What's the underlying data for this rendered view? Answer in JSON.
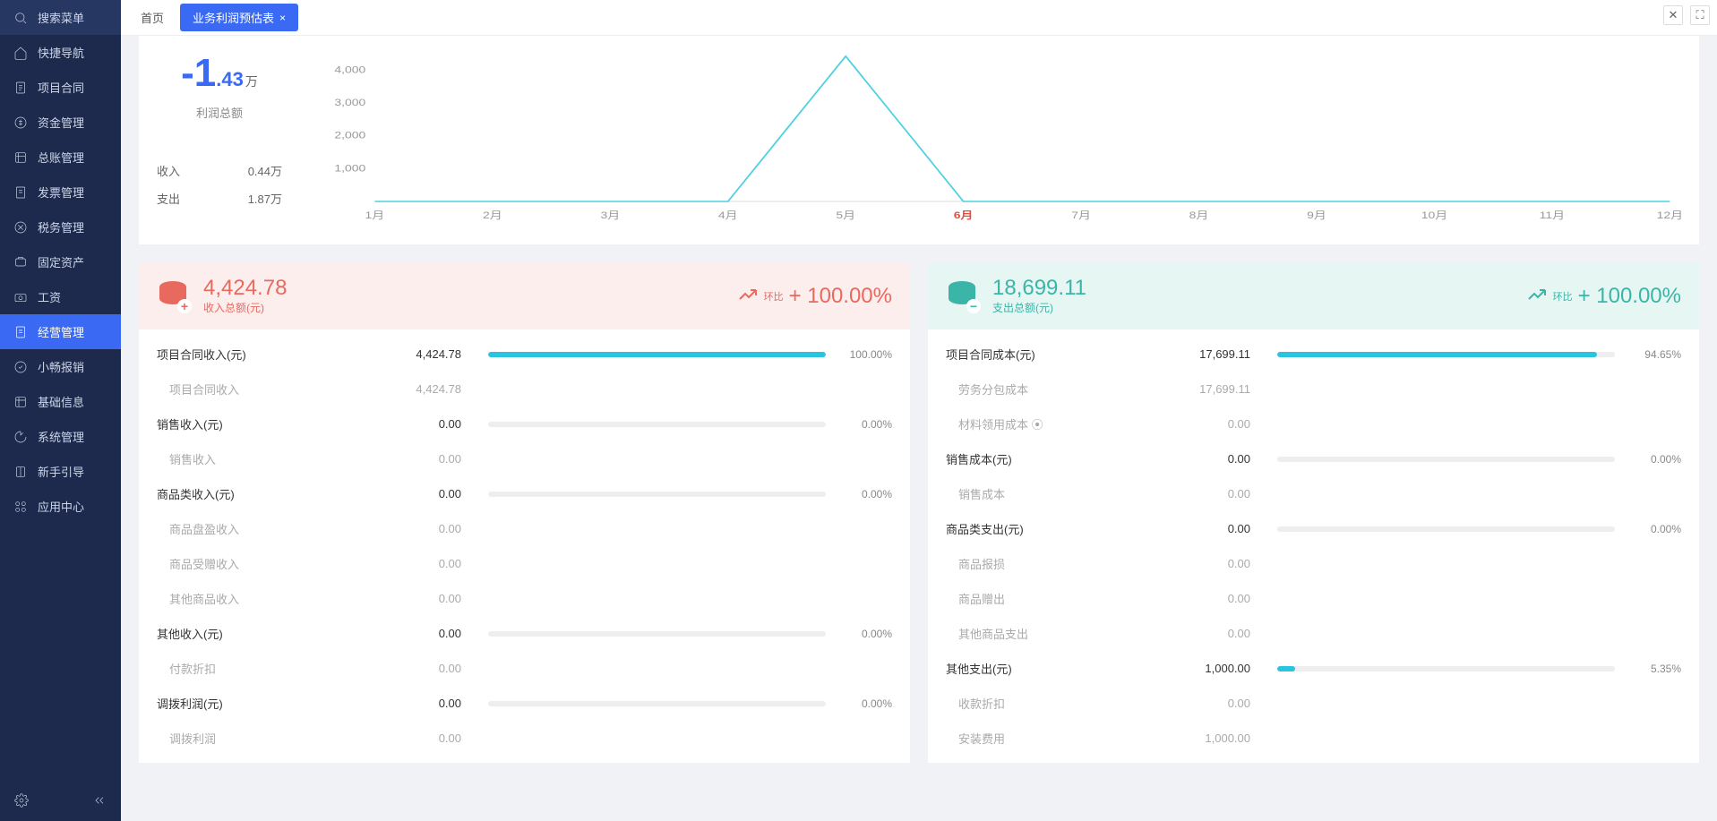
{
  "sidebar": {
    "items": [
      {
        "label": "搜索菜单",
        "icon": "search"
      },
      {
        "label": "快捷导航",
        "icon": "home"
      },
      {
        "label": "项目合同",
        "icon": "doc"
      },
      {
        "label": "资金管理",
        "icon": "money"
      },
      {
        "label": "总账管理",
        "icon": "ledger"
      },
      {
        "label": "发票管理",
        "icon": "invoice"
      },
      {
        "label": "税务管理",
        "icon": "tax"
      },
      {
        "label": "固定资产",
        "icon": "asset"
      },
      {
        "label": "工资",
        "icon": "salary"
      },
      {
        "label": "经营管理",
        "icon": "biz"
      },
      {
        "label": "小畅报销",
        "icon": "reimburse"
      },
      {
        "label": "基础信息",
        "icon": "info"
      },
      {
        "label": "系统管理",
        "icon": "system"
      },
      {
        "label": "新手引导",
        "icon": "guide"
      },
      {
        "label": "应用中心",
        "icon": "apps"
      }
    ],
    "active_index": 9
  },
  "tabs": {
    "items": [
      {
        "label": "首页",
        "closable": false
      },
      {
        "label": "业务利润预估表",
        "closable": true
      }
    ],
    "active_index": 1
  },
  "profit_card": {
    "value_int": "-1",
    "value_dec": ".43",
    "unit": "万",
    "label": "利润总额",
    "rows": [
      {
        "label": "收入",
        "value": "0.44万"
      },
      {
        "label": "支出",
        "value": "1.87万"
      }
    ]
  },
  "chart": {
    "type": "line",
    "x_labels": [
      "1月",
      "2月",
      "3月",
      "4月",
      "5月",
      "6月",
      "7月",
      "8月",
      "9月",
      "10月",
      "11月",
      "12月"
    ],
    "y_ticks": [
      0,
      1000,
      2000,
      3000,
      4000
    ],
    "y_max": 4500,
    "values": [
      0,
      0,
      0,
      0,
      4424,
      0,
      0,
      0,
      0,
      0,
      0,
      0
    ],
    "active_month_index": 5,
    "line_color": "#4dd0e1",
    "axis_color": "#dddddd",
    "label_color": "#999999",
    "active_label_color": "#e74c3c"
  },
  "income_panel": {
    "total": "4,424.78",
    "total_label": "收入总额(元)",
    "hb_label": "环比",
    "pct": "+ 100.00%",
    "accent": "#e86a5e",
    "bg": "#fdeeee",
    "rows": [
      {
        "type": "main",
        "label": "项目合同收入(元)",
        "value": "4,424.78",
        "pct": "100.00%",
        "bar": 100
      },
      {
        "type": "sub",
        "label": "项目合同收入",
        "value": "4,424.78"
      },
      {
        "type": "main",
        "label": "销售收入(元)",
        "value": "0.00",
        "pct": "0.00%",
        "bar": 0
      },
      {
        "type": "sub",
        "label": "销售收入",
        "value": "0.00"
      },
      {
        "type": "main",
        "label": "商品类收入(元)",
        "value": "0.00",
        "pct": "0.00%",
        "bar": 0
      },
      {
        "type": "sub",
        "label": "商品盘盈收入",
        "value": "0.00"
      },
      {
        "type": "sub",
        "label": "商品受赠收入",
        "value": "0.00"
      },
      {
        "type": "sub",
        "label": "其他商品收入",
        "value": "0.00"
      },
      {
        "type": "main",
        "label": "其他收入(元)",
        "value": "0.00",
        "pct": "0.00%",
        "bar": 0
      },
      {
        "type": "sub",
        "label": "付款折扣",
        "value": "0.00"
      },
      {
        "type": "main",
        "label": "调拨利润(元)",
        "value": "0.00",
        "pct": "0.00%",
        "bar": 0
      },
      {
        "type": "sub",
        "label": "调拨利润",
        "value": "0.00"
      }
    ]
  },
  "expense_panel": {
    "total": "18,699.11",
    "total_label": "支出总额(元)",
    "hb_label": "环比",
    "pct": "+ 100.00%",
    "accent": "#3bb5a8",
    "bg": "#e6f6f3",
    "rows": [
      {
        "type": "main",
        "label": "项目合同成本(元)",
        "value": "17,699.11",
        "pct": "94.65%",
        "bar": 94.65
      },
      {
        "type": "sub",
        "label": "劳务分包成本",
        "value": "17,699.11"
      },
      {
        "type": "sub",
        "label": "材料领用成本 ⦿",
        "value": "0.00"
      },
      {
        "type": "main",
        "label": "销售成本(元)",
        "value": "0.00",
        "pct": "0.00%",
        "bar": 0
      },
      {
        "type": "sub",
        "label": "销售成本",
        "value": "0.00"
      },
      {
        "type": "main",
        "label": "商品类支出(元)",
        "value": "0.00",
        "pct": "0.00%",
        "bar": 0
      },
      {
        "type": "sub",
        "label": "商品报损",
        "value": "0.00"
      },
      {
        "type": "sub",
        "label": "商品赠出",
        "value": "0.00"
      },
      {
        "type": "sub",
        "label": "其他商品支出",
        "value": "0.00"
      },
      {
        "type": "main",
        "label": "其他支出(元)",
        "value": "1,000.00",
        "pct": "5.35%",
        "bar": 5.35
      },
      {
        "type": "sub",
        "label": "收款折扣",
        "value": "0.00"
      },
      {
        "type": "sub",
        "label": "安装费用",
        "value": "1,000.00"
      }
    ]
  }
}
